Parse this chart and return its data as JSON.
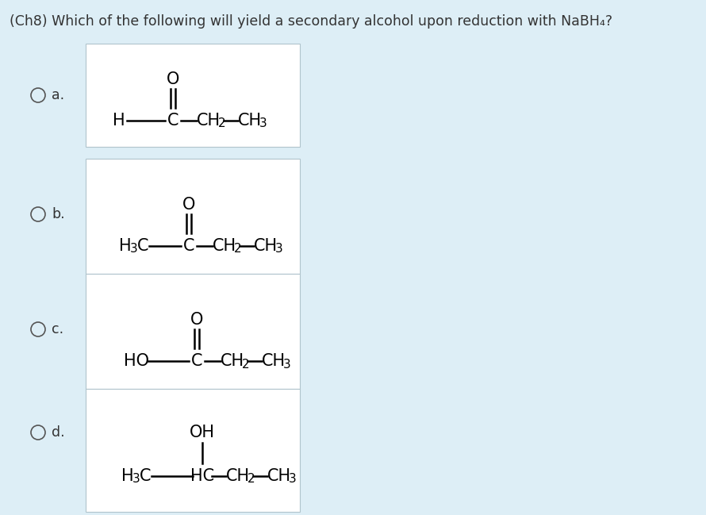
{
  "background_color": "#ddeef6",
  "title": "(Ch8) Which of the following will yield a secondary alcohol upon reduction with NaBH₄?",
  "title_fontsize": 12.5,
  "box_color": "#ffffff",
  "box_edge_color": "#b0c4cc",
  "options": [
    "a.",
    "b.",
    "c.",
    "d."
  ],
  "fig_width": 8.9,
  "fig_height": 6.49,
  "dpi": 100,
  "struct_fontsize": 15,
  "sub_fontsize": 11,
  "lw": 1.8
}
